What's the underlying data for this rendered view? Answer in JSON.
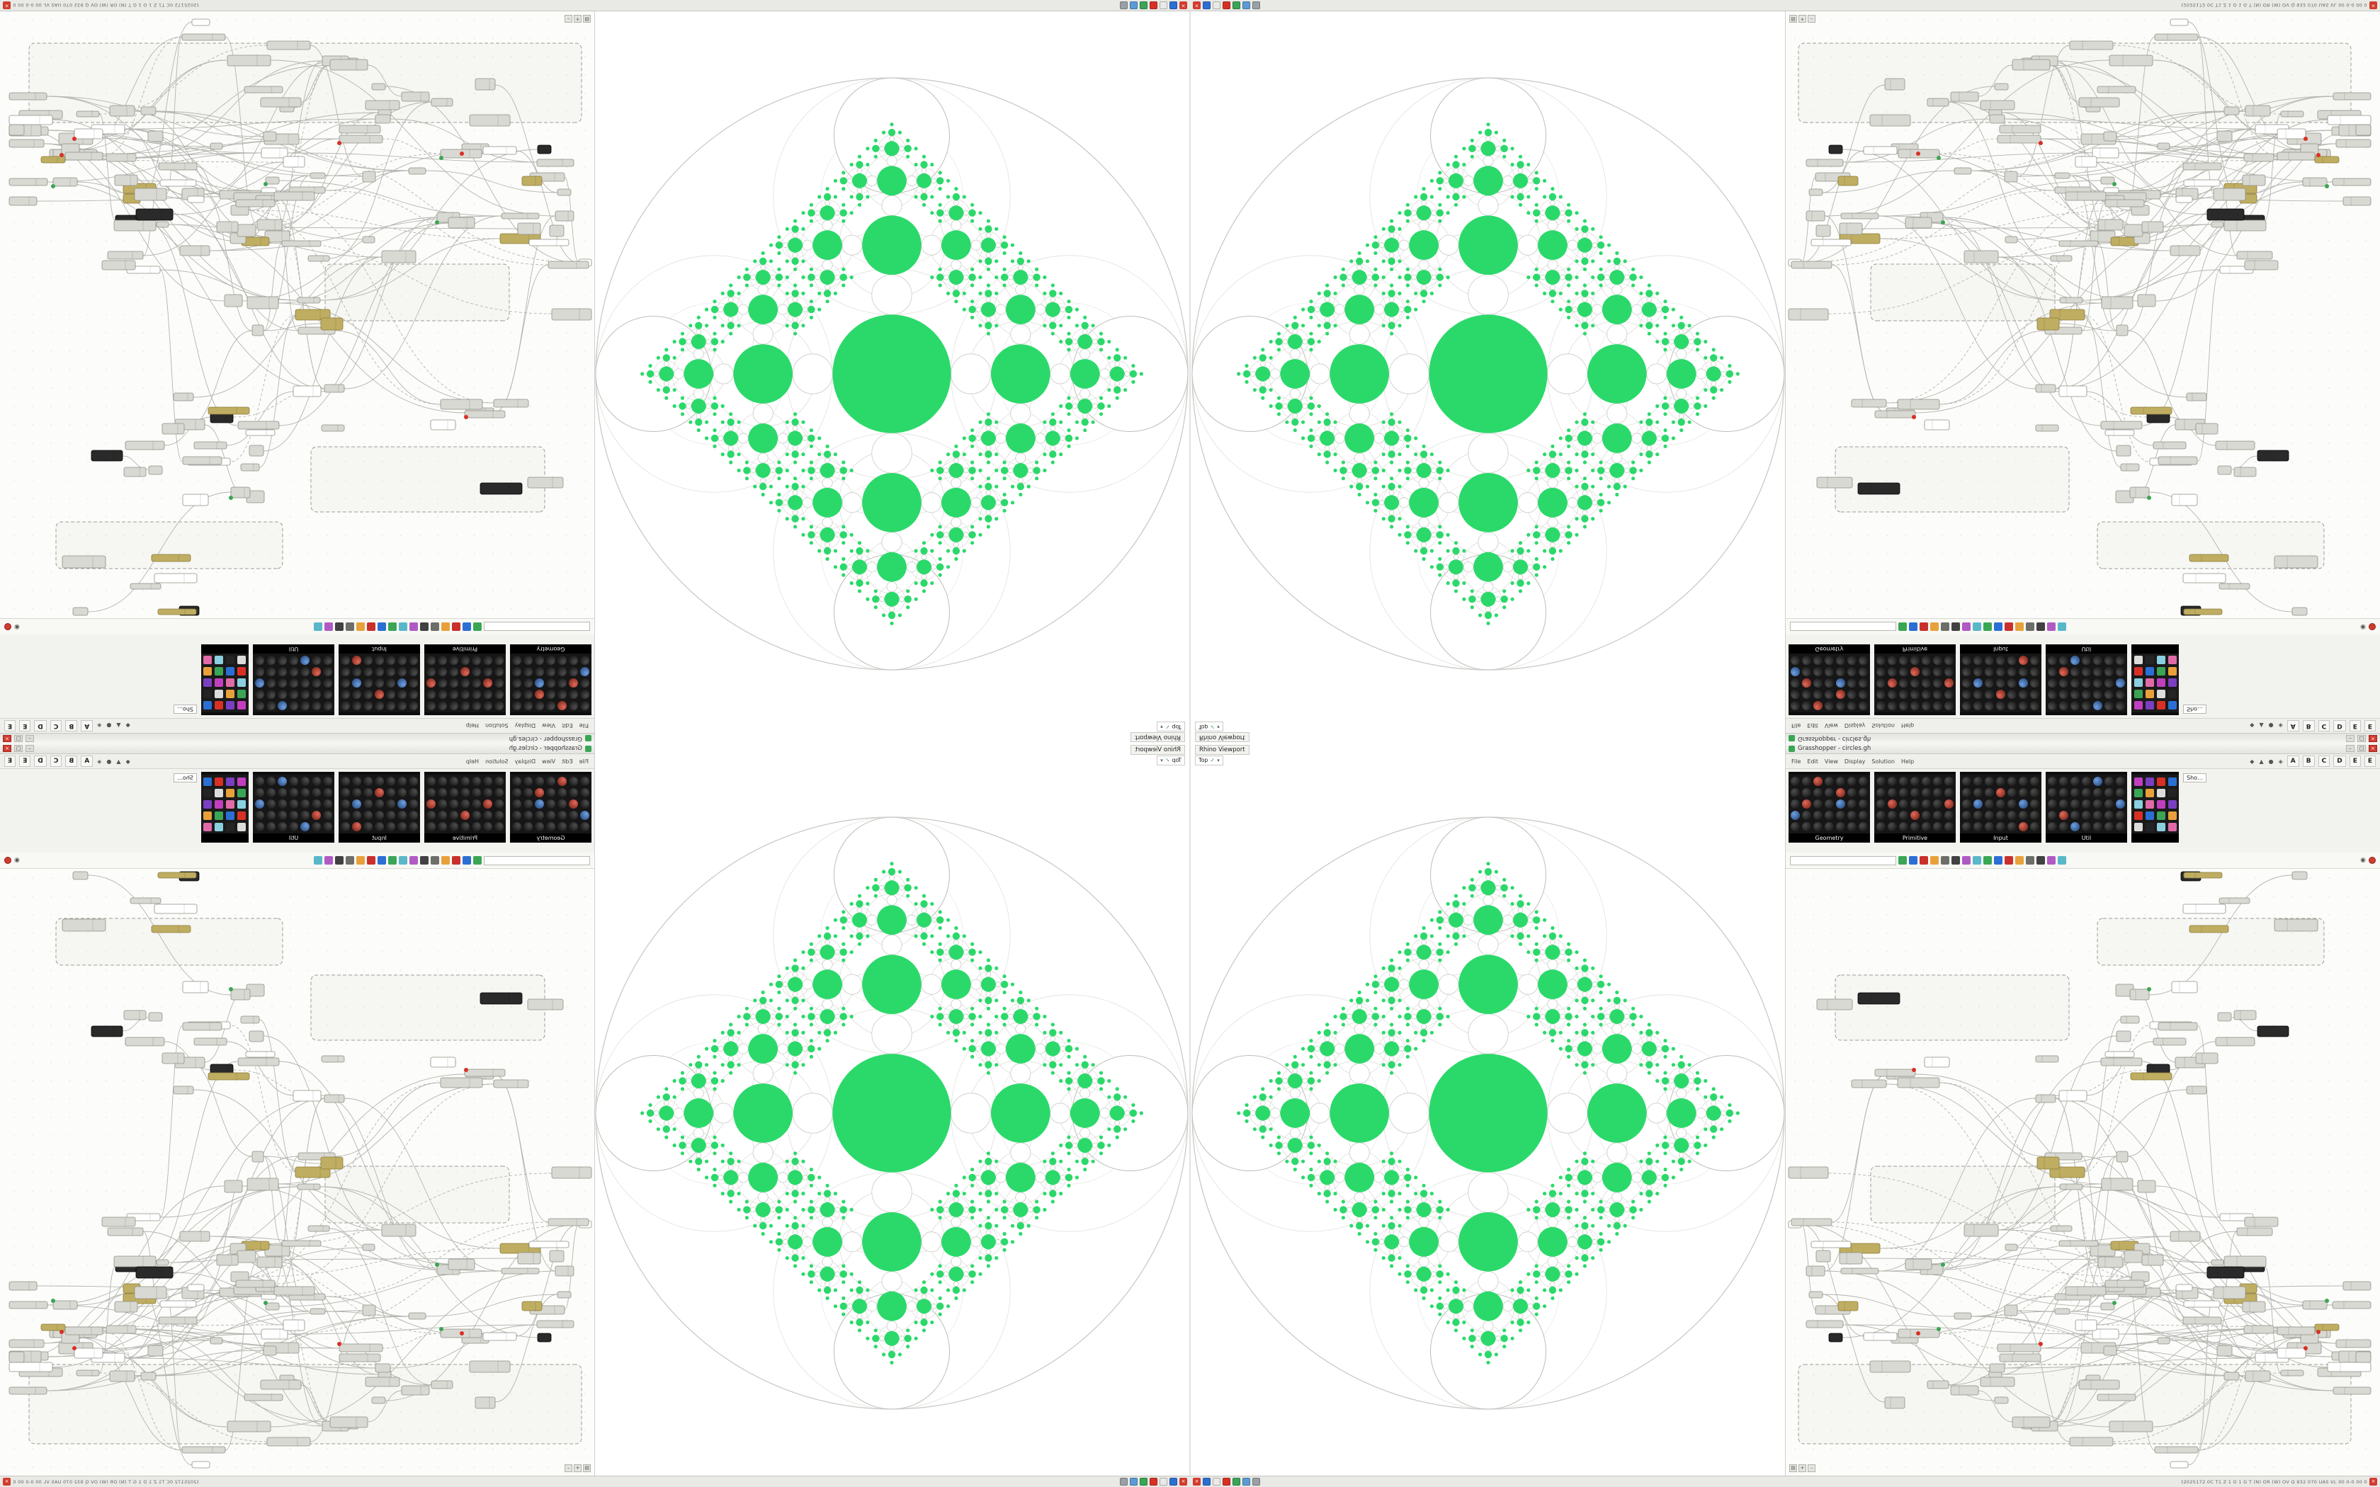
{
  "colors": {
    "fractal_green": "#2bd96a",
    "ring_gray": "#d8d8d5",
    "outline_gray": "#bcbcb8",
    "close_red": "#d23b2f",
    "gh_icon_green": "#3aa655",
    "palette_dark": "#161616",
    "node_gray": "#d9d9d3",
    "node_border": "#8f8f88",
    "node_dark": "#2a2a2a",
    "node_olive": "#bfae62",
    "wire_gray": "#b3b3af",
    "canvas_bg": "#fcfcfa",
    "chrome_bg": "#e9e9e5"
  },
  "window": {
    "title": "Grasshopper - circles.gh",
    "minimize_glyph": "–",
    "maximize_glyph": "□",
    "close_glyph": "×"
  },
  "menu": {
    "items": [
      "File",
      "Edit",
      "View",
      "Display",
      "Solution",
      "Help"
    ]
  },
  "tab_row": {
    "glyphs": [
      "◆",
      "▲",
      "●",
      "◈"
    ],
    "letters": [
      "A",
      "B",
      "C",
      "D",
      "E",
      "E"
    ]
  },
  "palette": {
    "groups": [
      {
        "label": "Geometry"
      },
      {
        "label": "Primitive"
      },
      {
        "label": "Input"
      },
      {
        "label": "Util"
      }
    ],
    "ui_label": "",
    "show_button": "Sho…",
    "color_icons": [
      "#c13fbf",
      "#7b3fc1",
      "#d93025",
      "#2b6fd4",
      "#3aa655",
      "#e8a13a",
      "#dcdcda",
      "#242424",
      "#8ad0e0",
      "#e06ba8"
    ]
  },
  "toolbar": {
    "search_placeholder": "",
    "search_value": "",
    "icon_colors": [
      "#3aa655",
      "#2b6fd4",
      "#c9302c",
      "#e8a13a",
      "#6d6d69",
      "#414141",
      "#b05bc4",
      "#58b8c9"
    ]
  },
  "viewport": {
    "panel_title": "Rhino Viewport",
    "tab_label": "Top",
    "tab_check": "✓",
    "tab_caret": "▾"
  },
  "canvas_nav": {
    "grid_glyph": "▤",
    "zoom_in_glyph": "+",
    "zoom_out_glyph": "–"
  },
  "taskbar": {
    "app_icons": [
      {
        "name": "app-icon-blue",
        "color": "#2b6fd4"
      },
      {
        "name": "app-icon-white",
        "color": "#e9e9e7"
      },
      {
        "name": "app-icon-red",
        "color": "#d93025"
      },
      {
        "name": "app-icon-green",
        "color": "#3aa655"
      },
      {
        "name": "app-icon-lightblue",
        "color": "#5b9bd5"
      },
      {
        "name": "app-icon-gray",
        "color": "#9aa0a6"
      }
    ],
    "status_text": "t2025172 0C T1 Z 1 O 1 G T (N) OR (W) OV Q 932 070 UAS VL 00 0-0 00 0"
  },
  "fractal": {
    "depth": 5,
    "root_radius_ratio": 0.2,
    "child_ratio": 0.5,
    "distance_factor": 1.45,
    "cardinal_radius_ratio": 0.195,
    "fill": "#2bd96a"
  },
  "canvas_graph": {
    "seed": 20250717,
    "cluster_count": 16,
    "wire_count": 120
  }
}
